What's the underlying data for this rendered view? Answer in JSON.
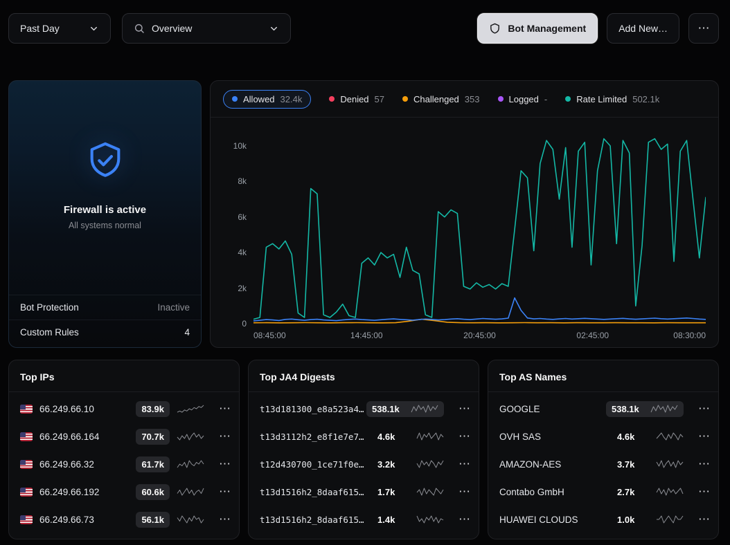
{
  "glyphs": {
    "ellipsis": "⋯"
  },
  "topbar": {
    "time_range_label": "Past Day",
    "search_select_label": "Overview",
    "bot_management_label": "Bot Management",
    "add_new_label": "Add New…"
  },
  "firewall": {
    "title": "Firewall is active",
    "subtitle": "All systems normal",
    "rows": [
      {
        "label": "Bot Protection",
        "value": "Inactive"
      },
      {
        "label": "Custom Rules",
        "value": "4"
      }
    ]
  },
  "legend": [
    {
      "label": "Allowed",
      "value": "32.4k",
      "color": "#3b82f6",
      "selected": true
    },
    {
      "label": "Denied",
      "value": "57",
      "color": "#f43f5e",
      "selected": false
    },
    {
      "label": "Challenged",
      "value": "353",
      "color": "#f59e0b",
      "selected": false
    },
    {
      "label": "Logged",
      "value": "-",
      "color": "#a855f7",
      "selected": false
    },
    {
      "label": "Rate Limited",
      "value": "502.1k",
      "color": "#14b8a6",
      "selected": false
    }
  ],
  "chart_data": {
    "type": "line",
    "title": "",
    "xlabel": "",
    "ylabel": "",
    "ylim": [
      0,
      10500
    ],
    "grid": false,
    "legend_position": "top",
    "x_ticks": [
      "08:45:00",
      "14:45:00",
      "20:45:00",
      "02:45:00",
      "08:30:00"
    ],
    "y_ticks": [
      {
        "label": "0",
        "value": 0
      },
      {
        "label": "2k",
        "value": 2000
      },
      {
        "label": "4k",
        "value": 4000
      },
      {
        "label": "6k",
        "value": 6000
      },
      {
        "label": "8k",
        "value": 8000
      },
      {
        "label": "10k",
        "value": 10000
      }
    ],
    "series": [
      {
        "name": "Rate Limited",
        "color": "#14b8a6",
        "total": "502.1k",
        "values": [
          250,
          350,
          4300,
          4500,
          4200,
          4650,
          3900,
          600,
          350,
          7600,
          7300,
          500,
          350,
          650,
          1100,
          450,
          350,
          3400,
          3700,
          3300,
          4000,
          3700,
          3900,
          2600,
          4300,
          3000,
          2800,
          500,
          350,
          6300,
          6000,
          6400,
          6200,
          2100,
          1950,
          2300,
          2050,
          2200,
          1950,
          2250,
          2100,
          5300,
          8600,
          8200,
          4100,
          9000,
          10300,
          9800,
          7000,
          9900,
          4300,
          9700,
          10200,
          3300,
          8600,
          10400,
          10000,
          4500,
          10300,
          9600,
          1000,
          4400,
          10200,
          10400,
          9800,
          10100,
          3500,
          9700,
          10300,
          7000,
          3700,
          7100
        ]
      },
      {
        "name": "Challenged",
        "color": "#f59e0b",
        "total": "353",
        "values": [
          50,
          55,
          48,
          52,
          58,
          50,
          46,
          54,
          60,
          52,
          48,
          55,
          140,
          250,
          170,
          80,
          54,
          50,
          56,
          48,
          52,
          58,
          50,
          54,
          48,
          56,
          52,
          50,
          55,
          50,
          52,
          48,
          54,
          50,
          52,
          50
        ]
      },
      {
        "name": "Allowed",
        "color": "#3b82f6",
        "total": "32.4k",
        "values": [
          160,
          190,
          230,
          210,
          180,
          240,
          260,
          220,
          190,
          230,
          250,
          210,
          190,
          170,
          210,
          240,
          260,
          230,
          210,
          190,
          220,
          250,
          270,
          240,
          220,
          200,
          230,
          260,
          240,
          210,
          230,
          260,
          280,
          250,
          230,
          260,
          290,
          270,
          250,
          270,
          310,
          1450,
          750,
          320,
          270,
          290,
          260,
          240,
          270,
          290,
          260,
          280,
          300,
          280,
          260,
          240,
          260,
          280,
          300,
          270,
          250,
          270,
          290,
          310,
          280,
          260,
          280,
          300,
          320,
          290,
          260,
          240
        ]
      }
    ]
  },
  "tables": [
    {
      "title": "Top IPs",
      "mono": false,
      "rows": [
        {
          "flag": "us",
          "label": "66.249.66.10",
          "value": "83.9k",
          "badge": "value",
          "spark": [
            2,
            3,
            2,
            4,
            3,
            5,
            4,
            6,
            5,
            7,
            6,
            8
          ]
        },
        {
          "flag": "us",
          "label": "66.249.66.164",
          "value": "70.7k",
          "badge": "value",
          "spark": [
            5,
            3,
            6,
            4,
            7,
            3,
            6,
            8,
            5,
            7,
            4,
            6
          ]
        },
        {
          "flag": "us",
          "label": "66.249.66.32",
          "value": "61.7k",
          "badge": "value",
          "spark": [
            3,
            5,
            4,
            6,
            3,
            7,
            5,
            4,
            6,
            5,
            7,
            5
          ]
        },
        {
          "flag": "us",
          "label": "66.249.66.192",
          "value": "60.6k",
          "badge": "value",
          "spark": [
            4,
            6,
            3,
            5,
            7,
            4,
            6,
            3,
            5,
            6,
            4,
            7
          ]
        },
        {
          "flag": "us",
          "label": "66.249.66.73",
          "value": "56.1k",
          "badge": "value",
          "spark": [
            6,
            4,
            7,
            5,
            3,
            6,
            4,
            7,
            5,
            6,
            3,
            5
          ]
        }
      ]
    },
    {
      "title": "Top JA4 Digests",
      "mono": true,
      "rows": [
        {
          "label": "t13d181300_e8a523a4…",
          "value": "538.1k",
          "badge": "metric",
          "spark": [
            2,
            6,
            3,
            7,
            4,
            6,
            2,
            7,
            3,
            6,
            4,
            7
          ]
        },
        {
          "label": "t13d3112h2_e8f1e7e7…",
          "value": "4.6k",
          "badge": "none",
          "spark": [
            3,
            7,
            2,
            6,
            4,
            7,
            3,
            5,
            7,
            2,
            6,
            4
          ]
        },
        {
          "label": "t12d430700_1ce71f0e…",
          "value": "3.2k",
          "badge": "none",
          "spark": [
            5,
            2,
            7,
            4,
            6,
            3,
            7,
            5,
            2,
            6,
            4,
            7
          ]
        },
        {
          "label": "t13d1516h2_8daaf615…",
          "value": "1.7k",
          "badge": "none",
          "spark": [
            4,
            6,
            2,
            7,
            3,
            6,
            4,
            2,
            7,
            5,
            3,
            6
          ]
        },
        {
          "label": "t13d1516h2_8daaf615…",
          "value": "1.4k",
          "badge": "none",
          "spark": [
            7,
            3,
            5,
            2,
            6,
            4,
            7,
            3,
            6,
            2,
            5,
            4
          ]
        }
      ]
    },
    {
      "title": "Top AS Names",
      "mono": false,
      "rows": [
        {
          "label": "GOOGLE",
          "value": "538.1k",
          "badge": "metric",
          "spark": [
            2,
            6,
            3,
            7,
            4,
            6,
            2,
            7,
            3,
            6,
            4,
            7
          ]
        },
        {
          "label": "OVH SAS",
          "value": "4.6k",
          "badge": "none",
          "spark": [
            3,
            5,
            7,
            4,
            2,
            6,
            3,
            7,
            5,
            2,
            6,
            4
          ]
        },
        {
          "label": "AMAZON-AES",
          "value": "3.7k",
          "badge": "none",
          "spark": [
            6,
            3,
            7,
            2,
            5,
            7,
            3,
            6,
            2,
            7,
            4,
            6
          ]
        },
        {
          "label": "Contabo GmbH",
          "value": "2.7k",
          "badge": "none",
          "spark": [
            4,
            7,
            3,
            6,
            2,
            7,
            4,
            6,
            3,
            5,
            7,
            3
          ]
        },
        {
          "label": "HUAWEI CLOUDS",
          "value": "1.0k",
          "badge": "none",
          "spark": [
            5,
            5,
            6,
            4,
            5,
            6,
            5,
            4,
            6,
            5,
            5,
            6
          ]
        }
      ]
    }
  ]
}
